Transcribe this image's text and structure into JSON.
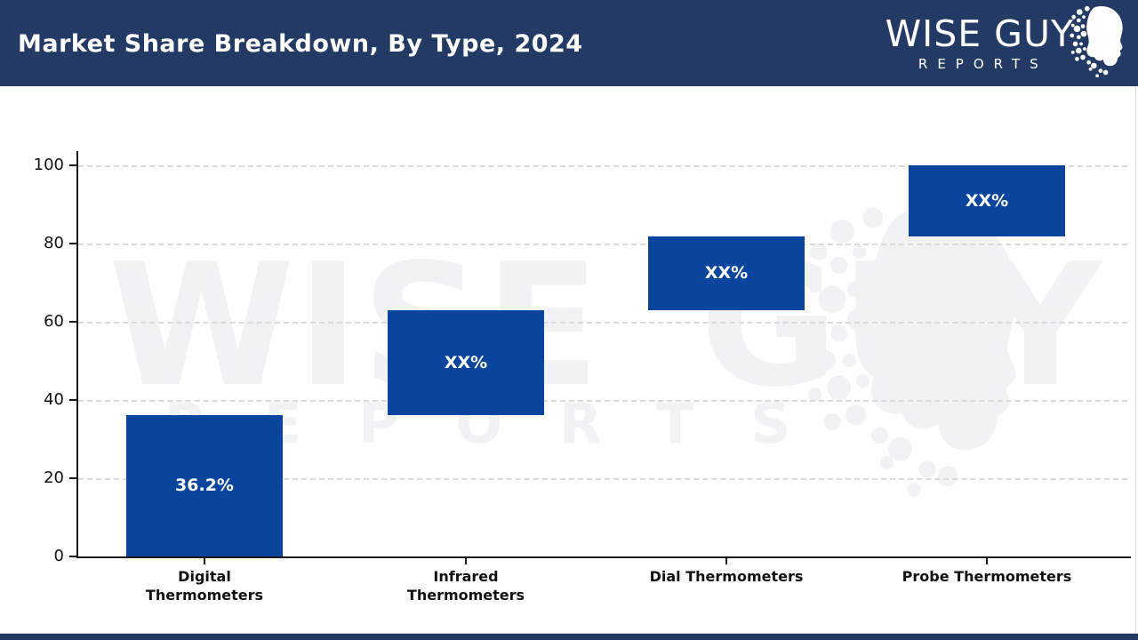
{
  "header": {
    "title": "Market Share Breakdown, By Type, 2024",
    "logo": {
      "line1": "WISE GUY",
      "line2": "REPORTS"
    }
  },
  "watermark": {
    "line1": "WISE GUY",
    "line2": "REPORTS"
  },
  "chart_data": {
    "type": "bar",
    "subtype": "waterfall-stacked-percentage",
    "title": "Market Share Breakdown, By Type, 2024",
    "categories": [
      "Digital Thermometers",
      "Infrared Thermometers",
      "Dial Thermometers",
      "Probe Thermometers"
    ],
    "bars": [
      {
        "category": "Digital Thermometers",
        "category_lines": [
          "Digital",
          "Thermometers"
        ],
        "start": 0,
        "end": 36.2,
        "label": "36.2%"
      },
      {
        "category": "Infrared Thermometers",
        "category_lines": [
          "Infrared",
          "Thermometers"
        ],
        "start": 36.2,
        "end": 63,
        "label": "XX%"
      },
      {
        "category": "Dial Thermometers",
        "category_lines": [
          "Dial Thermometers"
        ],
        "start": 63,
        "end": 81.8,
        "label": "XX%"
      },
      {
        "category": "Probe Thermometers",
        "category_lines": [
          "Probe Thermometers"
        ],
        "start": 81.8,
        "end": 100,
        "label": "XX%"
      }
    ],
    "ylim": [
      0,
      100
    ],
    "yticks": [
      0,
      20,
      40,
      60,
      80,
      100
    ],
    "xlabel": "",
    "ylabel": "",
    "grid": "horizontal-dashed",
    "legend": false
  },
  "colors": {
    "header_bg": "#223a64",
    "footer_bg": "#223a64",
    "bar_blue": "#0a459d",
    "bar_label_text": "#ffffff",
    "title_text": "#ffffff",
    "watermark": "#f1f2f4",
    "grid_line": "#d9d9d9",
    "axis": "#1a1a1a",
    "tick_text": "#111111"
  }
}
